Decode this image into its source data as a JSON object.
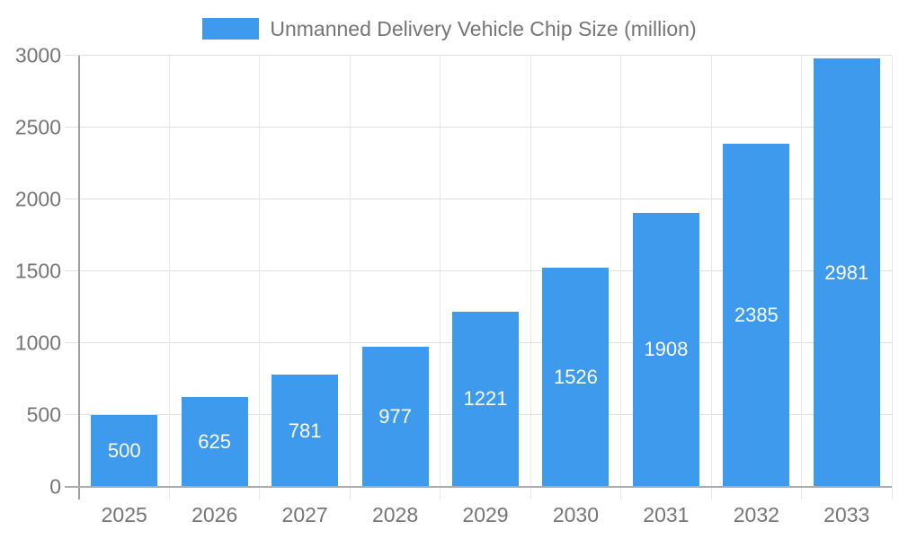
{
  "chart_data": {
    "type": "bar",
    "title": "",
    "legend": "Unmanned Delivery Vehicle Chip Size (million)",
    "legend_position": "top",
    "categories": [
      "2025",
      "2026",
      "2027",
      "2028",
      "2029",
      "2030",
      "2031",
      "2032",
      "2033"
    ],
    "series": [
      {
        "name": "Unmanned Delivery Vehicle Chip Size (million)",
        "values": [
          500,
          625,
          781,
          977,
          1221,
          1526,
          1908,
          2385,
          2981
        ]
      }
    ],
    "xlabel": "",
    "ylabel": "",
    "ylim": [
      0,
      3000
    ],
    "yticks": [
      0,
      500,
      1000,
      1500,
      2000,
      2500,
      3000
    ],
    "ytick_labels": [
      "0",
      "500",
      "1000",
      "1500",
      "2000",
      "2500",
      "3000"
    ],
    "grid": true,
    "bar_labels_shown": true,
    "colors": {
      "bar": "#3d9aed",
      "bar_label_text": "#ffffff",
      "axis_text": "#757575",
      "axis_line": "#a6a6a6",
      "gridline": "#e0e0e0",
      "background": "#ffffff"
    }
  }
}
